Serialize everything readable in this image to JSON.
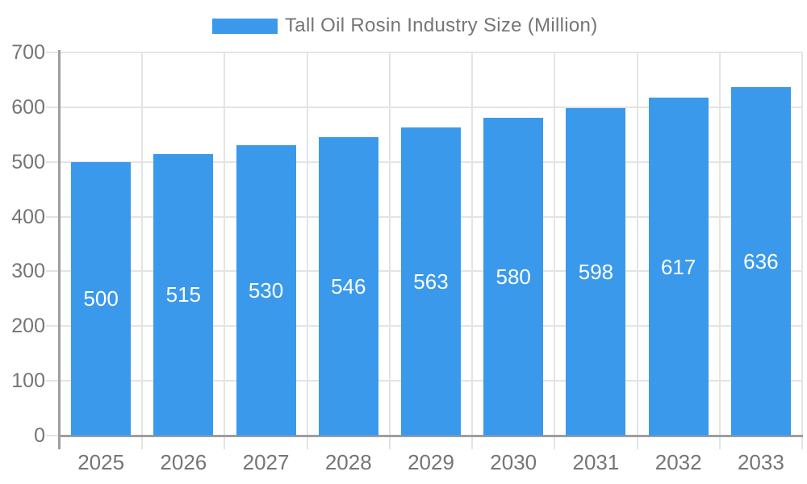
{
  "legend": {
    "label": "Tall Oil Rosin Industry Size (Million)"
  },
  "colors": {
    "bar": "#3B99EC",
    "grid": "#E4E4E4",
    "axis": "#9E9E9E",
    "tick_label": "#757575",
    "data_label": "#FFFFFF",
    "legend_text": "#757575"
  },
  "chart_data": {
    "type": "bar",
    "title": "Tall Oil Rosin Industry Size (Million)",
    "categories": [
      "2025",
      "2026",
      "2027",
      "2028",
      "2029",
      "2030",
      "2031",
      "2032",
      "2033"
    ],
    "values": [
      500,
      515,
      530,
      546,
      563,
      580,
      598,
      617,
      636
    ],
    "xlabel": "",
    "ylabel": "",
    "ylim": [
      0,
      700
    ],
    "yticks": [
      0,
      100,
      200,
      300,
      400,
      500,
      600,
      700
    ],
    "grid": true,
    "legend_position": "top-center",
    "data_labels": "inside-center-white"
  }
}
